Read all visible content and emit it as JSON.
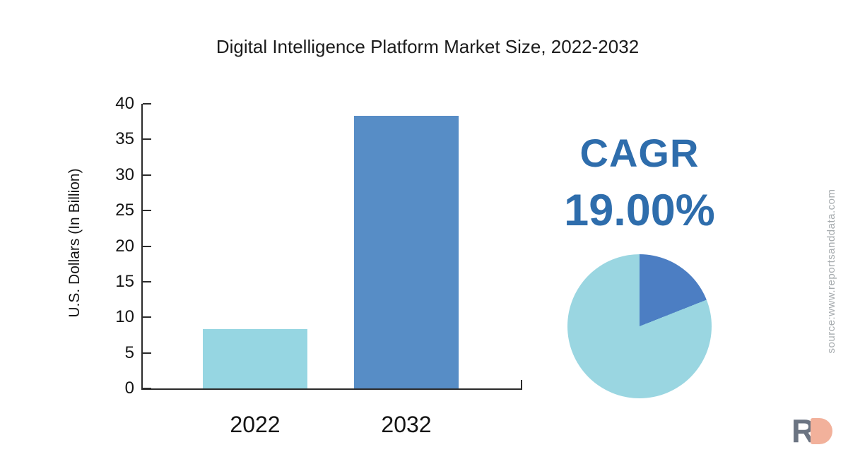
{
  "chart_data": [
    {
      "type": "bar",
      "title": "Digital Intelligence Platform Market Size, 2022-2032",
      "categories": [
        "2022",
        "2032"
      ],
      "values": [
        8.3,
        38.3
      ],
      "xlabel": "",
      "ylabel": "U.S. Dollars (In Billion)",
      "ylim": [
        0,
        40
      ],
      "yticks": [
        0,
        5,
        10,
        15,
        20,
        25,
        30,
        35,
        40
      ],
      "bar_colors": [
        "#96d6e2",
        "#578dc6"
      ],
      "grid": false,
      "legend": "none",
      "tick_direction": "in"
    },
    {
      "type": "pie",
      "values": [
        19,
        81
      ],
      "labels": [
        "CAGR 19.00%",
        "remainder"
      ],
      "colors": [
        "#4c7ec3",
        "#9ad6e1"
      ],
      "start_angle_deg": 0,
      "direction": "clockwise",
      "legend": "none"
    }
  ],
  "cagr": {
    "label": "CAGR",
    "value": "19.00%",
    "percent": 19,
    "color": "#2e6dac"
  },
  "source": {
    "text": "source:www.reportsanddata.com"
  },
  "logo": {
    "text": "R",
    "r_color": "#6b7482",
    "d_color": "#f2b19b"
  },
  "colors": {
    "axis": "#2b2b2b",
    "text": "#141414",
    "background": "#ffffff"
  }
}
